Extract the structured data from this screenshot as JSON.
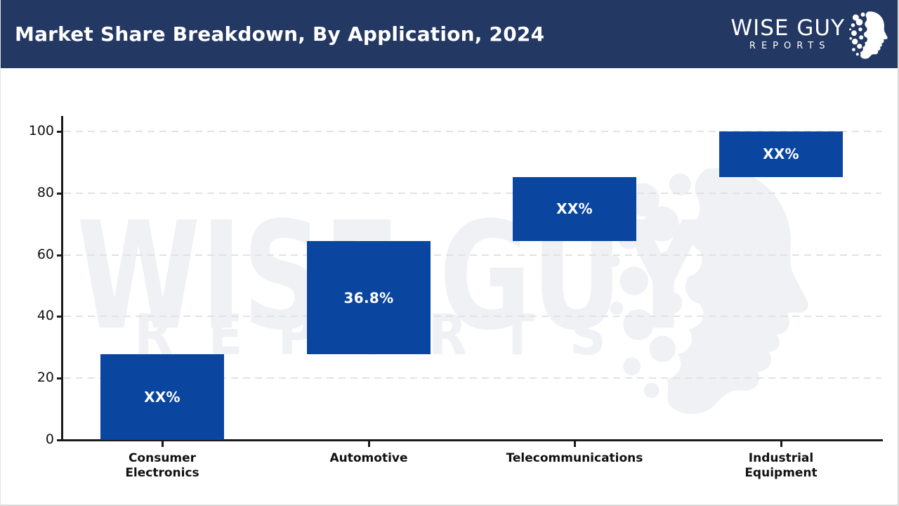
{
  "header": {
    "title": "Market Share Breakdown, By Application, 2024",
    "logo": {
      "wordmark": "WISE GUY",
      "subtext": "REPORTS"
    }
  },
  "watermark": {
    "wordmark": "WISE GUY",
    "subtext": "REPORTS"
  },
  "colors": {
    "header_bg": "#233862",
    "bar": "#0a46a0",
    "grid": "#e2e2e2",
    "axis": "#1a1a1a",
    "bar_label": "#ffffff",
    "watermark": "#f0f1f4"
  },
  "chart_data": {
    "type": "bar",
    "subtype": "floating-segment-waterfall",
    "title": "Market Share Breakdown, By Application, 2024",
    "categories": [
      "Consumer\nElectronics",
      "Automotive",
      "Telecommunications",
      "Industrial\nEquipment"
    ],
    "segments": [
      {
        "category": "Consumer Electronics",
        "start": 0,
        "end": 27.7,
        "value": 27.7,
        "label": "XX%"
      },
      {
        "category": "Automotive",
        "start": 27.7,
        "end": 64.5,
        "value": 36.8,
        "label": "36.8%"
      },
      {
        "category": "Telecommunications",
        "start": 64.5,
        "end": 85.2,
        "value": 20.7,
        "label": "XX%"
      },
      {
        "category": "Industrial Equipment",
        "start": 85.2,
        "end": 100,
        "value": 14.8,
        "label": "XX%"
      }
    ],
    "yticks": [
      0,
      20,
      40,
      60,
      80,
      100
    ],
    "ylim": [
      0,
      105
    ],
    "xlabel": "",
    "ylabel": "",
    "grid": "horizontal-dashed",
    "legend": null
  }
}
